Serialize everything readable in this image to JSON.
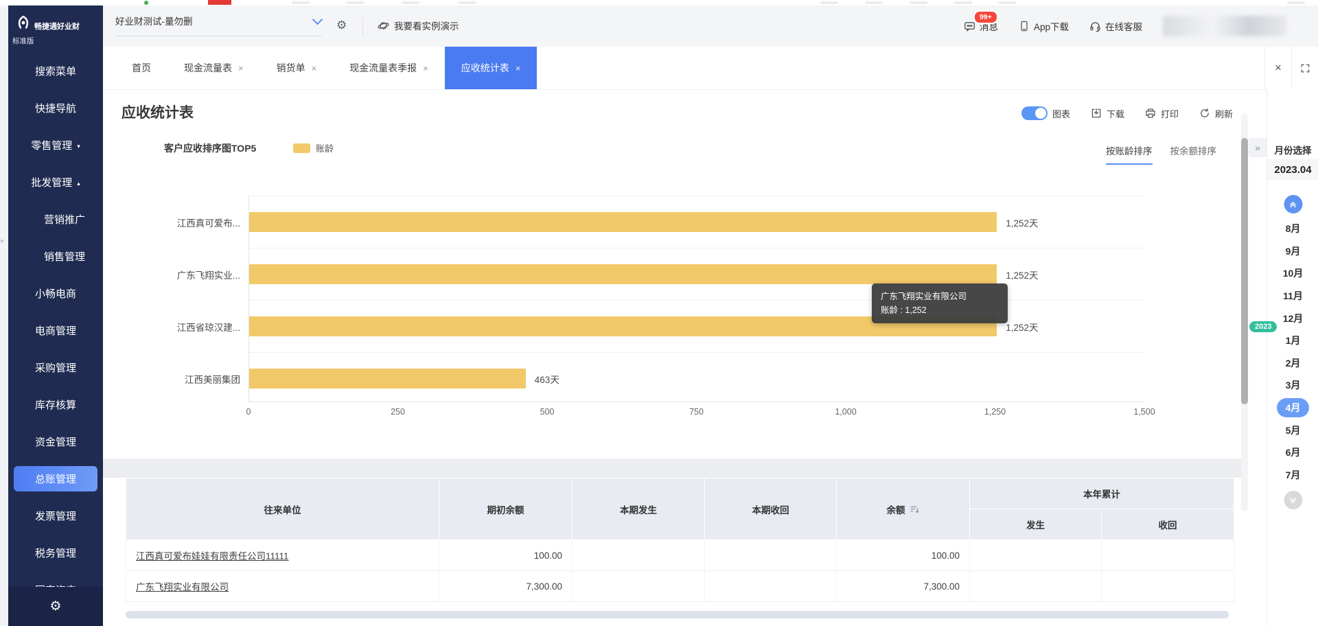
{
  "icons": {
    "gear": "⚙",
    "collapse": "»",
    "close": "×",
    "caret_down": "▾",
    "caret_up": "▴",
    "edge_arrow": "▸"
  },
  "sidebar": {
    "logo_title": "畅捷通好业财",
    "logo_subtitle": "标准版",
    "items": [
      {
        "label": "搜索菜单"
      },
      {
        "label": "快捷导航"
      },
      {
        "label": "零售管理",
        "arrow": "down"
      },
      {
        "label": "批发管理",
        "arrow": "up"
      },
      {
        "label": "营销推广",
        "sub": true
      },
      {
        "label": "销售管理",
        "sub": true
      },
      {
        "label": "小畅电商"
      },
      {
        "label": "电商管理"
      },
      {
        "label": "采购管理"
      },
      {
        "label": "库存核算"
      },
      {
        "label": "资金管理"
      },
      {
        "label": "总账管理",
        "active": true
      },
      {
        "label": "发票管理"
      },
      {
        "label": "税务管理"
      },
      {
        "label": "固定资产"
      }
    ]
  },
  "header": {
    "org_selector": "好业财测试-量勿删",
    "demo_link": "我要看实例演示",
    "messages_label": "消息",
    "messages_badge": "99+",
    "app_download_label": "App下载",
    "support_label": "在线客服"
  },
  "tabs": [
    {
      "label": "首页",
      "closable": false
    },
    {
      "label": "现金流量表",
      "closable": true
    },
    {
      "label": "销货单",
      "closable": true
    },
    {
      "label": "现金流量表季报",
      "closable": true
    },
    {
      "label": "应收统计表",
      "closable": true,
      "active": true
    }
  ],
  "page": {
    "title": "应收统计表",
    "toolbar": {
      "chart_toggle_label": "图表",
      "download": "下载",
      "print": "打印",
      "refresh": "刷新"
    }
  },
  "chart_data": {
    "type": "bar",
    "orientation": "horizontal",
    "title": "客户应收排序图TOP5",
    "legend": [
      {
        "label": "账龄",
        "color": "#f2c969"
      }
    ],
    "sort_tabs": [
      {
        "label": "按账龄排序",
        "active": true
      },
      {
        "label": "按余额排序",
        "active": false
      }
    ],
    "categories": [
      "江西真可爱布...",
      "广东飞翔实业...",
      "江西省琼汉建...",
      "江西美丽集团"
    ],
    "values": [
      1252,
      1252,
      1252,
      463
    ],
    "value_labels": [
      "1,252天",
      "1,252天",
      "1,252天",
      "463天"
    ],
    "xlim": [
      0,
      1500
    ],
    "x_ticks": [
      "0",
      "250",
      "500",
      "750",
      "1,000",
      "1,250",
      "1,500"
    ],
    "grid": "band-separators",
    "legend_position": "top",
    "bar_color": "#f2c969",
    "tooltip": {
      "title": "广东飞翔实业有限公司",
      "line": "账龄 : 1,252"
    }
  },
  "month_panel": {
    "title": "月份选择",
    "current": "2023.04",
    "year_badge": "2023",
    "months": [
      {
        "label": "8月"
      },
      {
        "label": "9月"
      },
      {
        "label": "10月"
      },
      {
        "label": "11月"
      },
      {
        "label": "12月"
      },
      {
        "label": "1月"
      },
      {
        "label": "2月"
      },
      {
        "label": "3月"
      },
      {
        "label": "4月",
        "active": true
      },
      {
        "label": "5月"
      },
      {
        "label": "6月"
      },
      {
        "label": "7月"
      }
    ]
  },
  "table": {
    "columns": [
      "往来单位",
      "期初余额",
      "本期发生",
      "本期收回",
      "余额"
    ],
    "sorted_column": "余额",
    "group_header": {
      "label": "本年累计",
      "children": [
        "发生",
        "收回"
      ]
    },
    "rows": [
      [
        "江西真可爱布娃娃有限责任公司11111",
        "100.00",
        "",
        "",
        "100.00",
        "",
        ""
      ],
      [
        "广东飞翔实业有限公司",
        "7,300.00",
        "",
        "",
        "7,300.00",
        "",
        ""
      ]
    ]
  }
}
